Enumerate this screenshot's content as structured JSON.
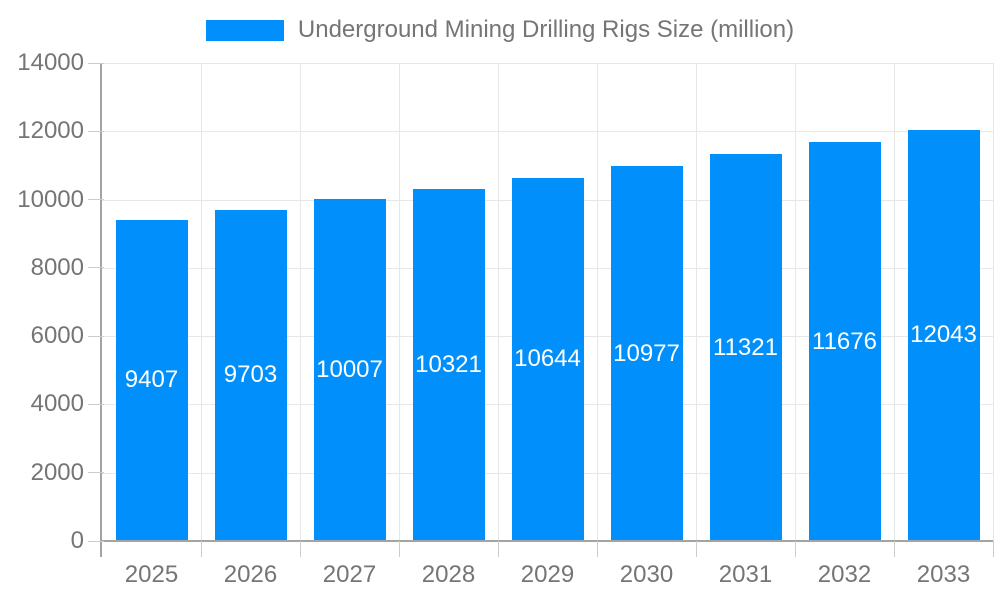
{
  "legend": {
    "label": "Underground Mining Drilling Rigs Size (million)"
  },
  "chart_data": {
    "type": "bar",
    "title": "Underground Mining Drilling Rigs Size (million)",
    "categories": [
      "2025",
      "2026",
      "2027",
      "2028",
      "2029",
      "2030",
      "2031",
      "2032",
      "2033"
    ],
    "series": [
      {
        "name": "Underground Mining Drilling Rigs Size (million)",
        "values": [
          9407,
          9703,
          10007,
          10321,
          10644,
          10977,
          11321,
          11676,
          12043
        ]
      }
    ],
    "value_labels_shown": true,
    "xlabel": "",
    "ylabel": "",
    "ylim": [
      0,
      14000
    ],
    "ytick_step": 2000,
    "ytick_labels": [
      "0",
      "2000",
      "4000",
      "6000",
      "8000",
      "10000",
      "12000",
      "14000"
    ],
    "grid": "both",
    "legend_position": "top",
    "colors": {
      "bar": "#008FFB",
      "axis_text": "#757575",
      "grid_line": "#e7e7e7",
      "axis_line": "#a3a3a3",
      "tick_line": "#cccccc",
      "value_label": "#ffffff",
      "background": "#ffffff"
    }
  }
}
